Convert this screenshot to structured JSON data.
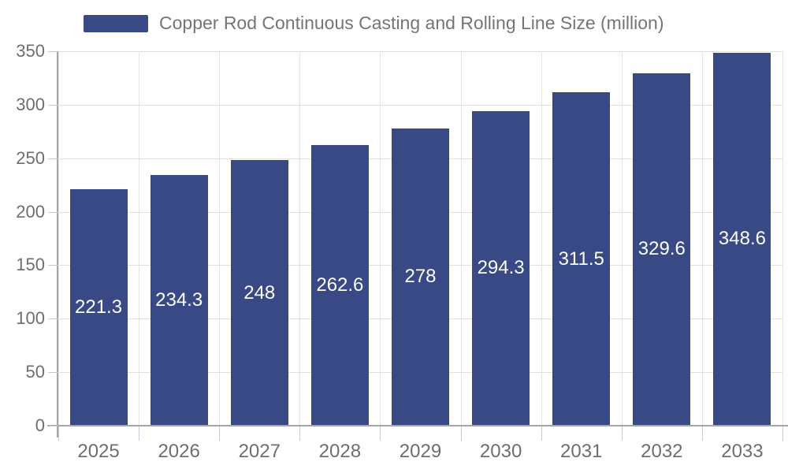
{
  "chart_data": {
    "type": "bar",
    "title": "Copper Rod Continuous Casting and Rolling Line Size (million)",
    "categories": [
      "2025",
      "2026",
      "2027",
      "2028",
      "2029",
      "2030",
      "2031",
      "2032",
      "2033"
    ],
    "values": [
      221.3,
      234.3,
      248,
      262.6,
      278,
      294.3,
      311.5,
      329.6,
      348.6
    ],
    "value_labels": [
      "221.3",
      "234.3",
      "248",
      "262.6",
      "278",
      "294.3",
      "311.5",
      "329.6",
      "348.6"
    ],
    "xlabel": "",
    "ylabel": "",
    "ylim": [
      0,
      350
    ],
    "yticks": [
      0,
      50,
      100,
      150,
      200,
      250,
      300,
      350
    ],
    "grid": true,
    "legend_position": "top",
    "legend_entries": [
      "Copper Rod Continuous Casting and Rolling Line Size (million)"
    ],
    "colors": {
      "bar": "#384985",
      "value_label_text": "#ffffff",
      "title_text": "#757575",
      "axis_label_text": "#6e6e6e",
      "gridline": "#e0e0e0",
      "boundary_line": "#e6e6ea",
      "axis_line": "#a6a6a6",
      "tick": "#c4c8d4",
      "background": "#ffffff"
    }
  }
}
